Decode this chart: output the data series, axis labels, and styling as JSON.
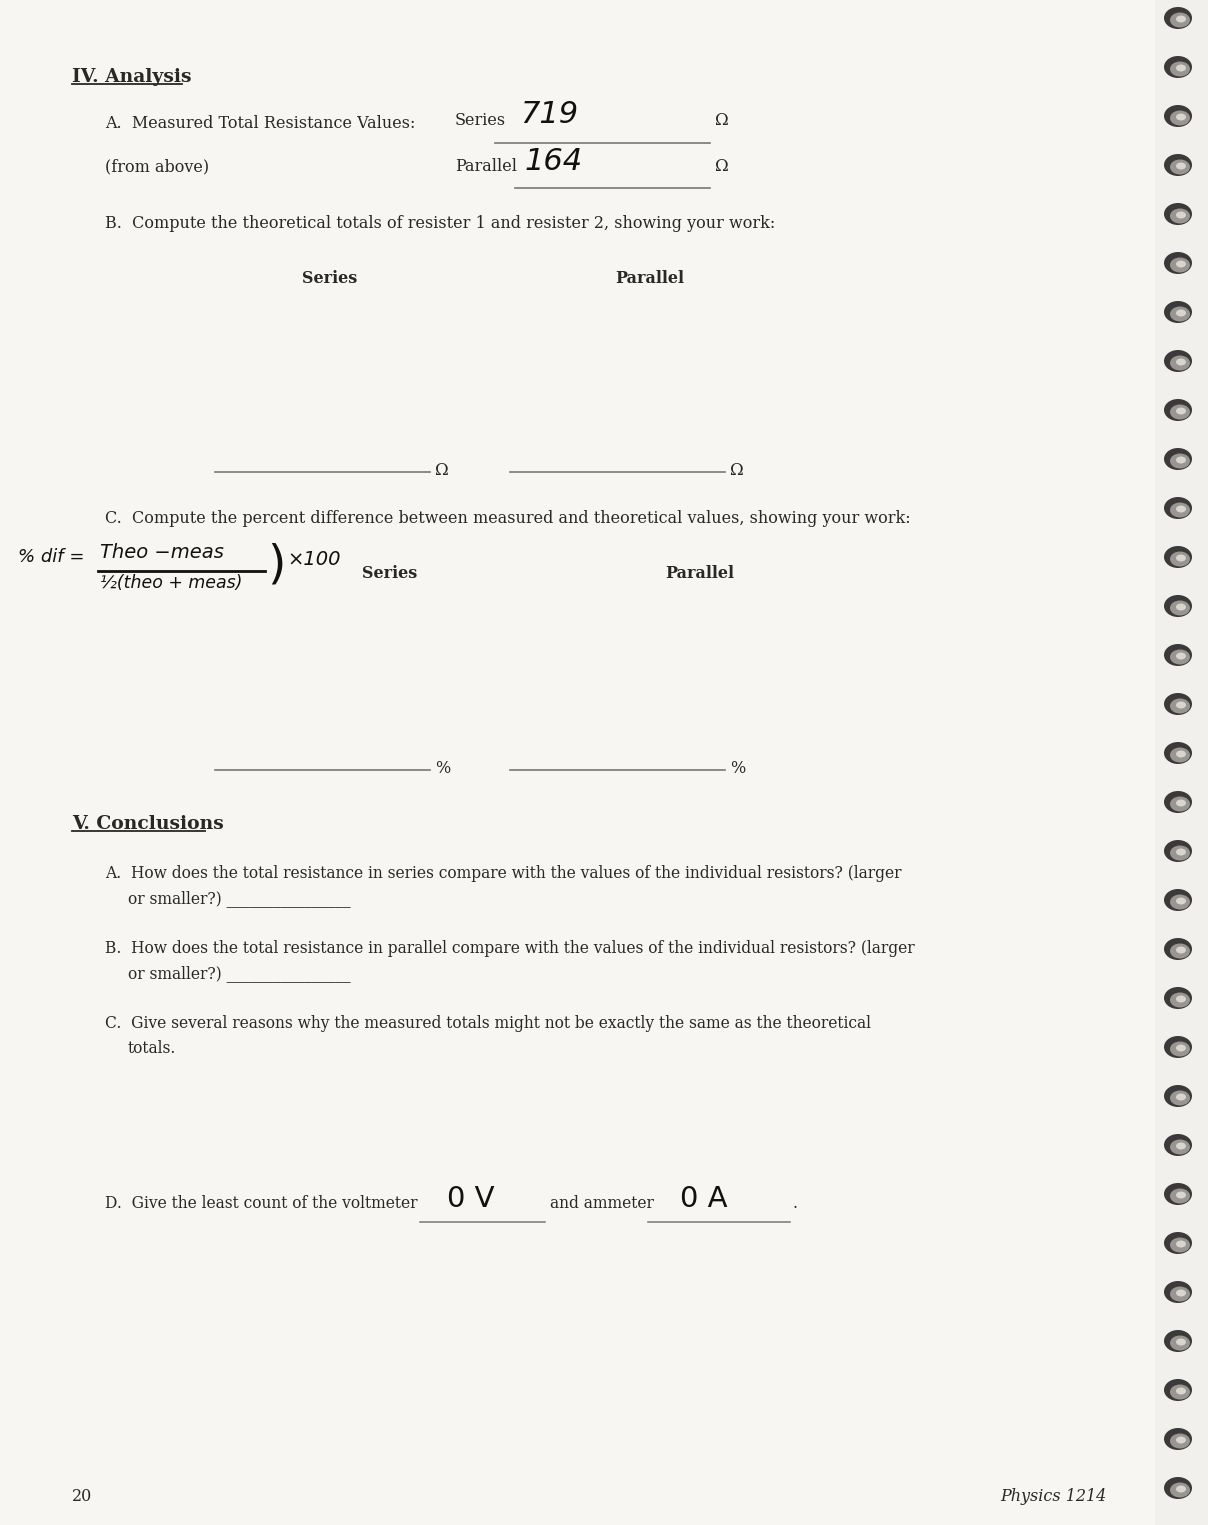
{
  "bg_color": "#f2f0ec",
  "page_color": "#f8f6f2",
  "text_color": "#2a2826",
  "hand_color": "#111111",
  "line_color": "#777777",
  "spiral_outer": "#444444",
  "spiral_inner": "#c0bbb5",
  "iv_title": "IV. Analysis",
  "a_label": "A.  Measured Total Resistance Values:",
  "from_above": "(from above)",
  "series_lbl": "Series",
  "parallel_lbl": "Parallel",
  "series_val": "719",
  "parallel_val": "164",
  "omega": "Ω",
  "b_label": "B.  Compute the theoretical totals of resister 1 and resister 2, showing your work:",
  "c_label": "C.  Compute the percent difference between measured and theoretical values, showing your work:",
  "v_title": "V. Conclusions",
  "a_concl": "A.  How does the total resistance in series compare with the values of the individual resistors? (larger",
  "a_concl2": "or smaller?) ________________",
  "b_concl": "B.  How does the total resistance in parallel compare with the values of the individual resistors? (larger",
  "b_concl2": "or smaller?) ________________",
  "c_concl": "C.  Give several reasons why the measured totals might not be exactly the same as the theoretical",
  "c_concl2": "totals.",
  "d_concl1": "D.  Give the least count of the voltmeter ________",
  "d_volt": "0 V",
  "d_concl2": "________ and ammeter ________",
  "d_amm": "0 A",
  "d_concl3": "________.",
  "page_num": "20",
  "physics": "Physics 1214"
}
